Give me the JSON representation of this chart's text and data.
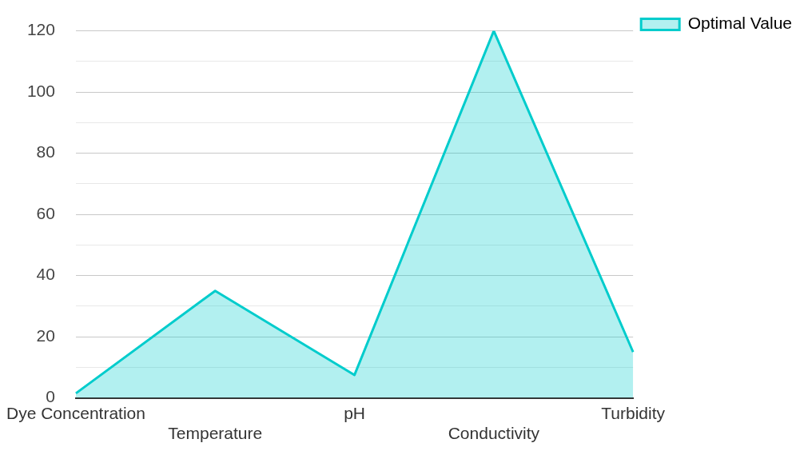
{
  "chart_data": {
    "type": "area",
    "categories": [
      "Dye Concentration",
      "Temperature",
      "pH",
      "Conductivity",
      "Turbidity"
    ],
    "series": [
      {
        "name": "Optimal Value",
        "color": "#00cccc",
        "values": [
          1.5,
          35,
          7.5,
          120,
          15
        ]
      }
    ],
    "ylim": [
      0,
      120
    ],
    "yticks": [
      0,
      {
        "value": 10,
        "label": null
      },
      20,
      {
        "value": 30,
        "label": null
      },
      40,
      {
        "value": 50,
        "label": null
      },
      60,
      {
        "value": 70,
        "label": null
      },
      80,
      {
        "value": 90,
        "label": null
      },
      100,
      {
        "value": 110,
        "label": null
      },
      120
    ],
    "grid": "y",
    "legend": "top right",
    "marker": "none",
    "line_style": "solid"
  }
}
